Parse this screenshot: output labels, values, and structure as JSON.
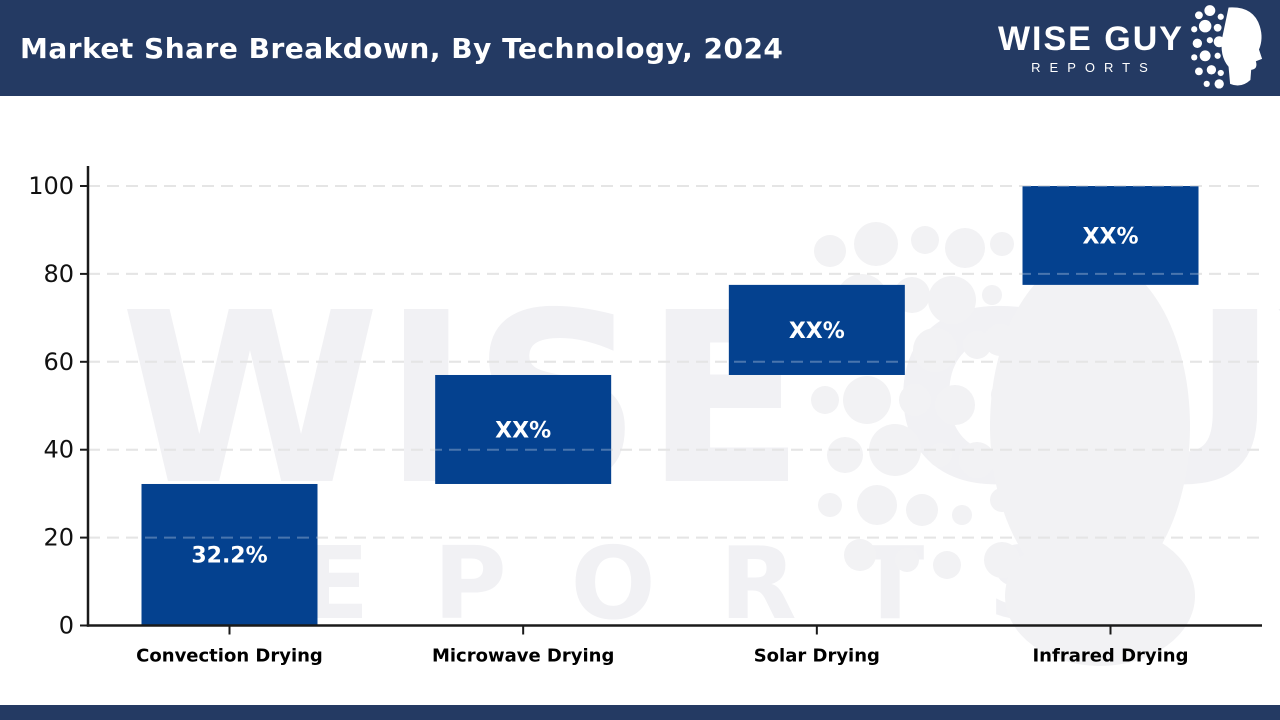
{
  "header": {
    "title": "Market Share Breakdown, By Technology, 2024",
    "logo": {
      "name": "WISE GUY",
      "sub": "REPORTS"
    }
  },
  "watermark": {
    "name": "WISE GUY",
    "sub": "REPORTS"
  },
  "colors": {
    "header_bg": "#243a63",
    "footer_bg": "#243a63",
    "bar": "#04418f",
    "bar_label": "#ffffff",
    "grid": "#dcdcdc",
    "axis": "#1a1a1a",
    "tick_label": "#111111",
    "category_label": "#000000",
    "watermark": "#f1f1f4"
  },
  "chart_data": {
    "type": "bar",
    "subtype": "waterfall",
    "title": "Market Share Breakdown, By Technology, 2024",
    "categories": [
      "Convection Drying",
      "Microwave Drying",
      "Solar Drying",
      "Infrared Drying"
    ],
    "segments": [
      {
        "category": "Convection Drying",
        "start": 0,
        "end": 32.2,
        "label": "32.2%"
      },
      {
        "category": "Microwave Drying",
        "start": 32.2,
        "end": 57.0,
        "label": "XX%"
      },
      {
        "category": "Solar Drying",
        "start": 57.0,
        "end": 77.5,
        "label": "XX%"
      },
      {
        "category": "Infrared Drying",
        "start": 77.5,
        "end": 100,
        "label": "XX%"
      }
    ],
    "yticks": [
      0,
      20,
      40,
      60,
      80,
      100
    ],
    "ylim": [
      0,
      105
    ],
    "xlabel": "",
    "ylabel": "",
    "grid": {
      "axis": "y",
      "style": "dashed"
    },
    "legend": "none"
  }
}
